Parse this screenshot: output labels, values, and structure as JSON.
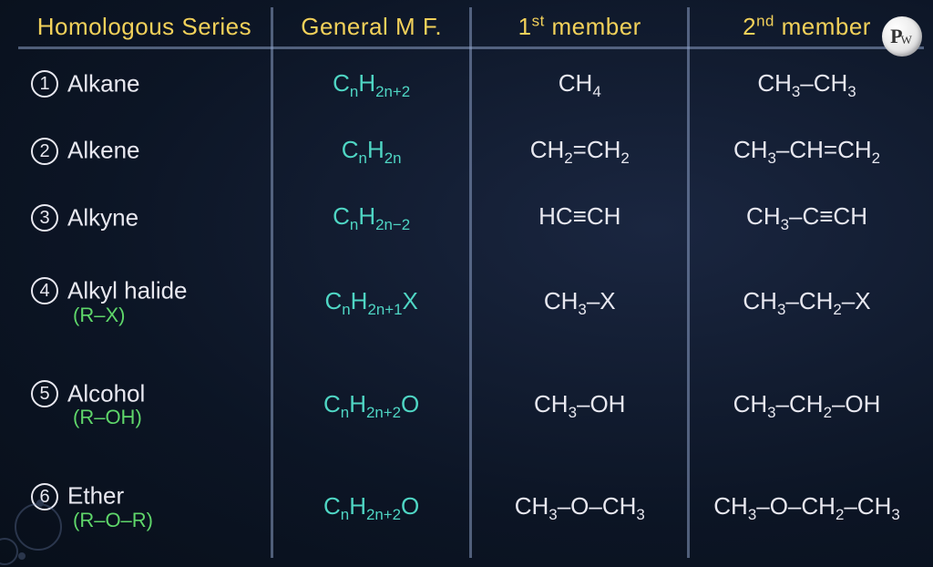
{
  "logo": {
    "p": "P",
    "w": "W"
  },
  "headers": {
    "series": "Homologous Series",
    "formula": "General M F.",
    "first": "1<sup>st</sup> member",
    "second": "2<sup>nd</sup> member"
  },
  "rows": [
    {
      "num": "1",
      "name": "Alkane",
      "sub": "",
      "formula": "C<sub>n</sub>H<sub>2n+2</sub>",
      "first": "CH<sub>4</sub>",
      "second": "CH<sub>3</sub>–CH<sub>3</sub>"
    },
    {
      "num": "2",
      "name": "Alkene",
      "sub": "",
      "formula": "C<sub>n</sub>H<sub>2n</sub>",
      "first": "CH<sub>2</sub>=CH<sub>2</sub>",
      "second": "CH<sub>3</sub>–CH=CH<sub>2</sub>"
    },
    {
      "num": "3",
      "name": "Alkyne",
      "sub": "",
      "formula": "C<sub>n</sub>H<sub>2n−2</sub>",
      "first": "HC≡CH",
      "second": "CH<sub>3</sub>–C≡CH"
    },
    {
      "num": "4",
      "name": "Alkyl halide",
      "sub": "(R–X)",
      "formula": "C<sub>n</sub>H<sub>2n+1</sub>X",
      "first": "CH<sub>3</sub>–X",
      "second": "CH<sub>3</sub>–CH<sub>2</sub>–X"
    },
    {
      "num": "5",
      "name": "Alcohol",
      "sub": "(R–OH)",
      "formula": "C<sub>n</sub>H<sub>2n+2</sub>O",
      "first": "CH<sub>3</sub>–OH",
      "second": "CH<sub>3</sub>–CH<sub>2</sub>–OH"
    },
    {
      "num": "6",
      "name": "Ether",
      "sub": "(R–O–R)",
      "formula": "C<sub>n</sub>H<sub>2n+2</sub>O",
      "first": "CH<sub>3</sub>–O–CH<sub>3</sub>",
      "second": "CH<sub>3</sub>–O–CH<sub>2</sub>–CH<sub>3</sub>"
    }
  ],
  "colors": {
    "header": "#f2d15a",
    "formula": "#4fd6c4",
    "sublabel": "#5fd66a",
    "body": "#e8e8f0",
    "rule": "rgba(150,170,210,0.5)",
    "bg_inner": "#1a2640",
    "bg_outer": "#080f1a"
  }
}
